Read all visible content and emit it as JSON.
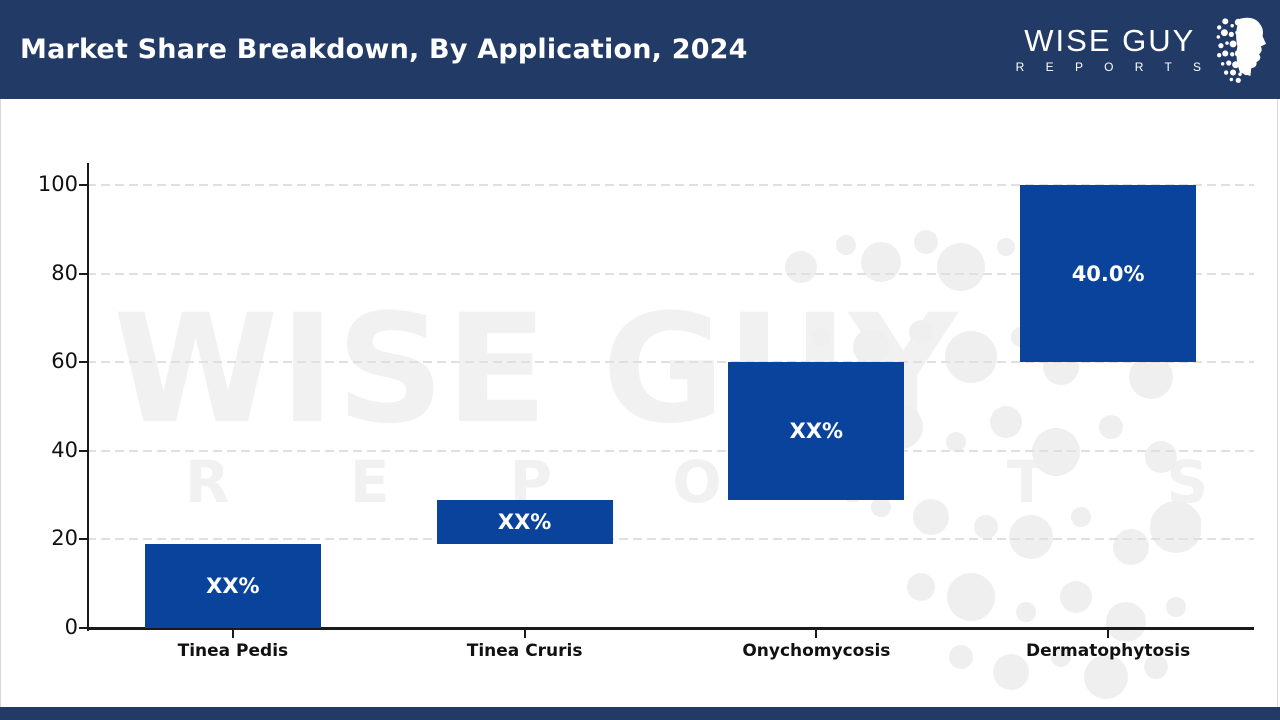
{
  "header": {
    "title": "Market Share Breakdown, By Application, 2024",
    "logo": {
      "line1": "WISE GUY",
      "line2": "R E P O R T S"
    }
  },
  "watermark": {
    "line1": "WISE GUY",
    "line2": "R E P O R T S"
  },
  "colors": {
    "header_bg": "#213A66",
    "footer_bg": "#213A66",
    "bar": "#09439B",
    "bar_label": "#FFFFFF",
    "axis": "#1A1A1A",
    "gridline": "#E0E0E0",
    "watermark": "#F1F1F1"
  },
  "chart_data": {
    "type": "bar",
    "variant": "waterfall",
    "title": "Market Share Breakdown, By Application, 2024",
    "categories": [
      "Tinea Pedis",
      "Tinea Cruris",
      "Onychomycosis",
      "Dermatophytosis"
    ],
    "segments": [
      {
        "category": "Tinea Pedis",
        "start": 0,
        "end": 19,
        "value_label": "XX%"
      },
      {
        "category": "Tinea Cruris",
        "start": 19,
        "end": 29,
        "value_label": "XX%"
      },
      {
        "category": "Onychomycosis",
        "start": 29,
        "end": 60,
        "value_label": "XX%"
      },
      {
        "category": "Dermatophytosis",
        "start": 60,
        "end": 100,
        "value_label": "40.0%",
        "value": 40.0
      }
    ],
    "xlabel": "",
    "ylabel": "",
    "ylim": [
      0,
      105
    ],
    "yticks": [
      0,
      20,
      40,
      60,
      80,
      100
    ],
    "grid": "horizontal-dashed",
    "legend": "none",
    "bar_color": "#09439B"
  }
}
